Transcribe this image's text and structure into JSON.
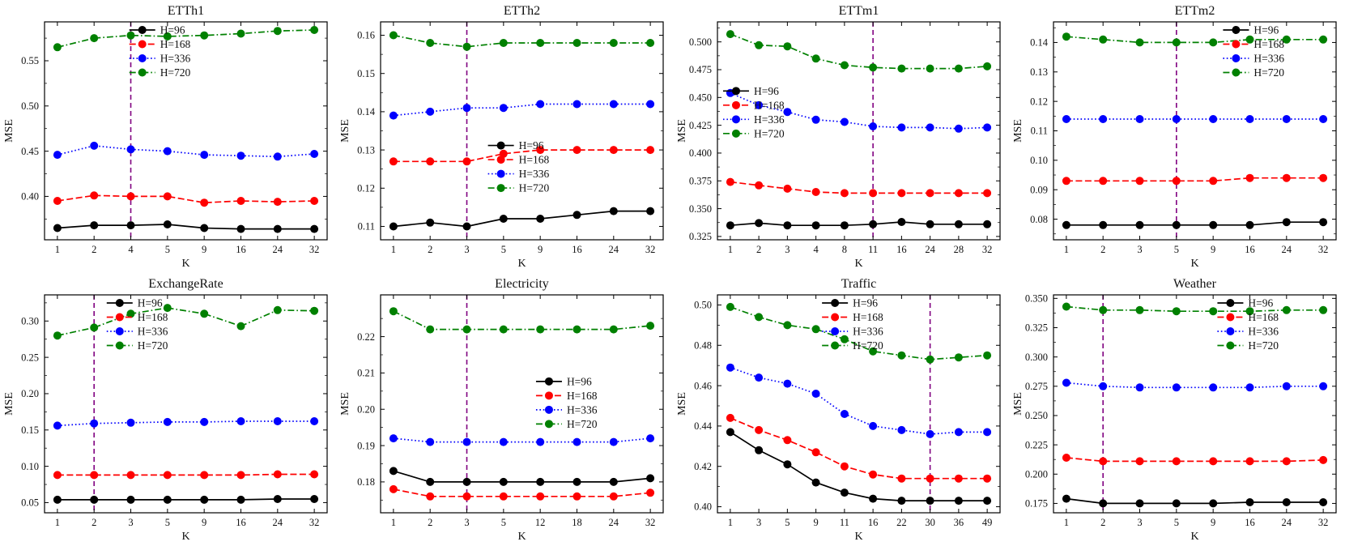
{
  "style": {
    "vline_color": "#800080",
    "series_styles": [
      {
        "name": "H=96",
        "color": "#000000",
        "dash": "solid"
      },
      {
        "name": "H=168",
        "color": "#fe0000",
        "dash": "dashed"
      },
      {
        "name": "H=336",
        "color": "#0000fe",
        "dash": "dotted"
      },
      {
        "name": "H=720",
        "color": "#008000",
        "dash": "dashdot"
      }
    ]
  },
  "chart_data": [
    {
      "type": "line",
      "title": "ETTh1",
      "xlabel": "K",
      "ylabel": "MSE",
      "x_ticks": [
        "1",
        "2",
        "4",
        "5",
        "9",
        "16",
        "24",
        "32"
      ],
      "ylim": [
        0.352,
        0.593
      ],
      "yticks": [
        0.4,
        0.45,
        0.5,
        0.55
      ],
      "ytick_labels": [
        "0.40",
        "0.45",
        "0.50",
        "0.55"
      ],
      "vline_x": "4",
      "legend": {
        "x": 0.3,
        "y": 0.0
      },
      "series": [
        {
          "name": "H=96",
          "values": [
            0.365,
            0.368,
            0.368,
            0.369,
            0.365,
            0.364,
            0.364,
            0.364
          ]
        },
        {
          "name": "H=168",
          "values": [
            0.395,
            0.401,
            0.4,
            0.4,
            0.393,
            0.395,
            0.394,
            0.395
          ]
        },
        {
          "name": "H=336",
          "values": [
            0.446,
            0.456,
            0.452,
            0.45,
            0.446,
            0.445,
            0.444,
            0.447
          ]
        },
        {
          "name": "H=720",
          "values": [
            0.565,
            0.575,
            0.578,
            0.577,
            0.578,
            0.58,
            0.583,
            0.584
          ]
        }
      ]
    },
    {
      "type": "line",
      "title": "ETTh2",
      "xlabel": "K",
      "ylabel": "MSE",
      "x_ticks": [
        "1",
        "2",
        "3",
        "5",
        "9",
        "16",
        "24",
        "32"
      ],
      "ylim": [
        0.1065,
        0.1635
      ],
      "yticks": [
        0.11,
        0.12,
        0.13,
        0.14,
        0.15,
        0.16
      ],
      "ytick_labels": [
        "0.11",
        "0.12",
        "0.13",
        "0.14",
        "0.15",
        "0.16"
      ],
      "vline_x": "3",
      "legend": {
        "x": 0.38,
        "y": 0.53
      },
      "series": [
        {
          "name": "H=96",
          "values": [
            0.11,
            0.111,
            0.11,
            0.112,
            0.112,
            0.113,
            0.114,
            0.114
          ]
        },
        {
          "name": "H=168",
          "values": [
            0.127,
            0.127,
            0.127,
            0.129,
            0.13,
            0.13,
            0.13,
            0.13
          ]
        },
        {
          "name": "H=336",
          "values": [
            0.139,
            0.14,
            0.141,
            0.141,
            0.142,
            0.142,
            0.142,
            0.142
          ]
        },
        {
          "name": "H=720",
          "values": [
            0.16,
            0.158,
            0.157,
            0.158,
            0.158,
            0.158,
            0.158,
            0.158
          ]
        }
      ]
    },
    {
      "type": "line",
      "title": "ETTm1",
      "xlabel": "K",
      "ylabel": "MSE",
      "x_ticks": [
        "1",
        "2",
        "3",
        "4",
        "8",
        "11",
        "16",
        "24",
        "28",
        "32"
      ],
      "ylim": [
        0.322,
        0.518
      ],
      "yticks": [
        0.325,
        0.35,
        0.375,
        0.4,
        0.425,
        0.45,
        0.475,
        0.5
      ],
      "ytick_labels": [
        "0.325",
        "0.350",
        "0.375",
        "0.400",
        "0.425",
        "0.450",
        "0.475",
        "0.500"
      ],
      "vline_x": "11",
      "legend": {
        "x": 0.02,
        "y": 0.28
      },
      "series": [
        {
          "name": "H=96",
          "values": [
            0.335,
            0.337,
            0.335,
            0.335,
            0.335,
            0.336,
            0.338,
            0.336,
            0.336,
            0.336
          ]
        },
        {
          "name": "H=168",
          "values": [
            0.374,
            0.371,
            0.368,
            0.365,
            0.364,
            0.364,
            0.364,
            0.364,
            0.364,
            0.364
          ]
        },
        {
          "name": "H=336",
          "values": [
            0.454,
            0.443,
            0.437,
            0.43,
            0.428,
            0.424,
            0.423,
            0.423,
            0.422,
            0.423
          ]
        },
        {
          "name": "H=720",
          "values": [
            0.507,
            0.497,
            0.496,
            0.485,
            0.479,
            0.477,
            0.476,
            0.476,
            0.476,
            0.478
          ]
        }
      ]
    },
    {
      "type": "line",
      "title": "ETTm2",
      "xlabel": "K",
      "ylabel": "MSE",
      "x_ticks": [
        "1",
        "2",
        "3",
        "5",
        "9",
        "16",
        "24",
        "32"
      ],
      "ylim": [
        0.073,
        0.147
      ],
      "yticks": [
        0.08,
        0.09,
        0.1,
        0.11,
        0.12,
        0.13,
        0.14
      ],
      "ytick_labels": [
        "0.08",
        "0.09",
        "0.10",
        "0.11",
        "0.12",
        "0.13",
        "0.14"
      ],
      "vline_x": "5",
      "legend": {
        "x": 0.6,
        "y": 0.0
      },
      "series": [
        {
          "name": "H=96",
          "values": [
            0.078,
            0.078,
            0.078,
            0.078,
            0.078,
            0.078,
            0.079,
            0.079
          ]
        },
        {
          "name": "H=168",
          "values": [
            0.093,
            0.093,
            0.093,
            0.093,
            0.093,
            0.094,
            0.094,
            0.094
          ]
        },
        {
          "name": "H=336",
          "values": [
            0.114,
            0.114,
            0.114,
            0.114,
            0.114,
            0.114,
            0.114,
            0.114
          ]
        },
        {
          "name": "H=720",
          "values": [
            0.142,
            0.141,
            0.14,
            0.14,
            0.14,
            0.141,
            0.141,
            0.141
          ]
        }
      ]
    },
    {
      "type": "line",
      "title": "ExchangeRate",
      "xlabel": "K",
      "ylabel": "MSE",
      "x_ticks": [
        "1",
        "2",
        "3",
        "5",
        "9",
        "16",
        "24",
        "32"
      ],
      "ylim": [
        0.036,
        0.336
      ],
      "yticks": [
        0.05,
        0.1,
        0.15,
        0.2,
        0.25,
        0.3
      ],
      "ytick_labels": [
        "0.05",
        "0.10",
        "0.15",
        "0.20",
        "0.25",
        "0.30"
      ],
      "vline_x": "2",
      "legend": {
        "x": 0.22,
        "y": 0.0
      },
      "series": [
        {
          "name": "H=96",
          "values": [
            0.054,
            0.054,
            0.054,
            0.054,
            0.054,
            0.054,
            0.055,
            0.055
          ]
        },
        {
          "name": "H=168",
          "values": [
            0.088,
            0.088,
            0.088,
            0.088,
            0.088,
            0.088,
            0.089,
            0.089
          ]
        },
        {
          "name": "H=336",
          "values": [
            0.156,
            0.159,
            0.16,
            0.161,
            0.161,
            0.162,
            0.162,
            0.162
          ]
        },
        {
          "name": "H=720",
          "values": [
            0.28,
            0.291,
            0.31,
            0.318,
            0.31,
            0.293,
            0.315,
            0.314
          ]
        }
      ]
    },
    {
      "type": "line",
      "title": "Electricity",
      "xlabel": "K",
      "ylabel": "MSE",
      "x_ticks": [
        "1",
        "2",
        "3",
        "5",
        "12",
        "18",
        "24",
        "32"
      ],
      "ylim": [
        0.1715,
        0.2315
      ],
      "yticks": [
        0.18,
        0.19,
        0.2,
        0.21,
        0.22
      ],
      "ytick_labels": [
        "0.18",
        "0.19",
        "0.20",
        "0.21",
        "0.22"
      ],
      "vline_x": "3",
      "legend": {
        "x": 0.55,
        "y": 0.36
      },
      "series": [
        {
          "name": "H=96",
          "values": [
            0.183,
            0.18,
            0.18,
            0.18,
            0.18,
            0.18,
            0.18,
            0.181
          ]
        },
        {
          "name": "H=168",
          "values": [
            0.178,
            0.176,
            0.176,
            0.176,
            0.176,
            0.176,
            0.176,
            0.177
          ]
        },
        {
          "name": "H=336",
          "values": [
            0.192,
            0.191,
            0.191,
            0.191,
            0.191,
            0.191,
            0.191,
            0.192
          ]
        },
        {
          "name": "H=720",
          "values": [
            0.227,
            0.222,
            0.222,
            0.222,
            0.222,
            0.222,
            0.222,
            0.223
          ]
        }
      ]
    },
    {
      "type": "line",
      "title": "Traffic",
      "xlabel": "K",
      "ylabel": "MSE",
      "x_ticks": [
        "1",
        "3",
        "5",
        "9",
        "11",
        "16",
        "22",
        "30",
        "36",
        "49"
      ],
      "ylim": [
        0.397,
        0.505
      ],
      "yticks": [
        0.4,
        0.42,
        0.44,
        0.46,
        0.48,
        0.5
      ],
      "ytick_labels": [
        "0.40",
        "0.42",
        "0.44",
        "0.46",
        "0.48",
        "0.50"
      ],
      "vline_x": "30",
      "legend": {
        "x": 0.37,
        "y": 0.0
      },
      "series": [
        {
          "name": "H=96",
          "values": [
            0.437,
            0.428,
            0.421,
            0.412,
            0.407,
            0.404,
            0.403,
            0.403,
            0.403,
            0.403
          ]
        },
        {
          "name": "H=168",
          "values": [
            0.444,
            0.438,
            0.433,
            0.427,
            0.42,
            0.416,
            0.414,
            0.414,
            0.414,
            0.414
          ]
        },
        {
          "name": "H=336",
          "values": [
            0.469,
            0.464,
            0.461,
            0.456,
            0.446,
            0.44,
            0.438,
            0.436,
            0.437,
            0.437
          ]
        },
        {
          "name": "H=720",
          "values": [
            0.499,
            0.494,
            0.49,
            0.488,
            0.483,
            0.477,
            0.475,
            0.473,
            0.474,
            0.475
          ]
        }
      ]
    },
    {
      "type": "line",
      "title": "Weather",
      "xlabel": "K",
      "ylabel": "MSE",
      "x_ticks": [
        "1",
        "2",
        "3",
        "5",
        "9",
        "16",
        "24",
        "32"
      ],
      "ylim": [
        0.167,
        0.353
      ],
      "yticks": [
        0.175,
        0.2,
        0.225,
        0.25,
        0.275,
        0.3,
        0.325,
        0.35
      ],
      "ytick_labels": [
        "0.175",
        "0.200",
        "0.225",
        "0.250",
        "0.275",
        "0.300",
        "0.325",
        "0.350"
      ],
      "vline_x": "2",
      "legend": {
        "x": 0.58,
        "y": 0.0
      },
      "series": [
        {
          "name": "H=96",
          "values": [
            0.179,
            0.175,
            0.175,
            0.175,
            0.175,
            0.176,
            0.176,
            0.176
          ]
        },
        {
          "name": "H=168",
          "values": [
            0.214,
            0.211,
            0.211,
            0.211,
            0.211,
            0.211,
            0.211,
            0.212
          ]
        },
        {
          "name": "H=336",
          "values": [
            0.278,
            0.275,
            0.274,
            0.274,
            0.274,
            0.274,
            0.275,
            0.275
          ]
        },
        {
          "name": "H=720",
          "values": [
            0.343,
            0.34,
            0.34,
            0.339,
            0.339,
            0.339,
            0.34,
            0.34
          ]
        }
      ]
    }
  ]
}
